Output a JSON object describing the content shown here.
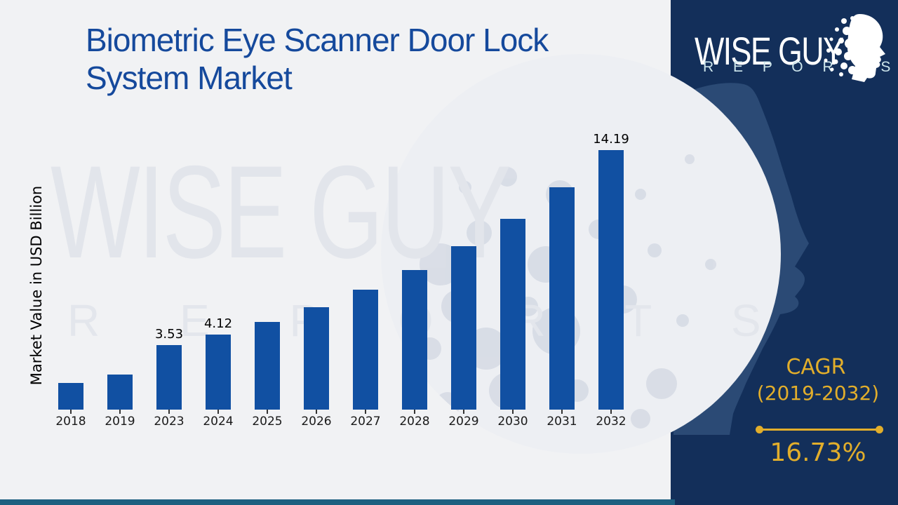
{
  "canvas": {
    "background": "#f1f2f4",
    "bottom_strip_color": "#1d6080"
  },
  "title": {
    "line1": "Biometric Eye Scanner Door Lock",
    "line2": "System Market",
    "color": "#15499c"
  },
  "watermark": {
    "line1": "WISE GUY",
    "line2": "R E P O R T S"
  },
  "chart_data": {
    "type": "bar",
    "title": "Biometric Eye Scanner Door Lock System Market",
    "xlabel": "",
    "ylabel": "Market Value in USD Billion",
    "categories": [
      "2018",
      "2019",
      "2023",
      "2024",
      "2025",
      "2026",
      "2027",
      "2028",
      "2029",
      "2030",
      "2031",
      "2032"
    ],
    "values": [
      1.46,
      1.9,
      3.53,
      4.12,
      4.81,
      5.61,
      6.55,
      7.65,
      8.93,
      10.42,
      12.17,
      14.19
    ],
    "value_labels": {
      "2023": "3.53",
      "2024": "4.12",
      "2032": "14.19"
    },
    "ylim": [
      0,
      15
    ],
    "grid": false,
    "legend": false,
    "bar_color": "#1150a2"
  },
  "brand_panel": {
    "background": "#132f5a",
    "logo": {
      "line1": "WISE GUY",
      "line2": "R E P O R T S"
    },
    "cagr": {
      "label": "CAGR",
      "period": "(2019-2032)",
      "value": "16.73%",
      "accent_color": "#e2ae2b"
    }
  }
}
